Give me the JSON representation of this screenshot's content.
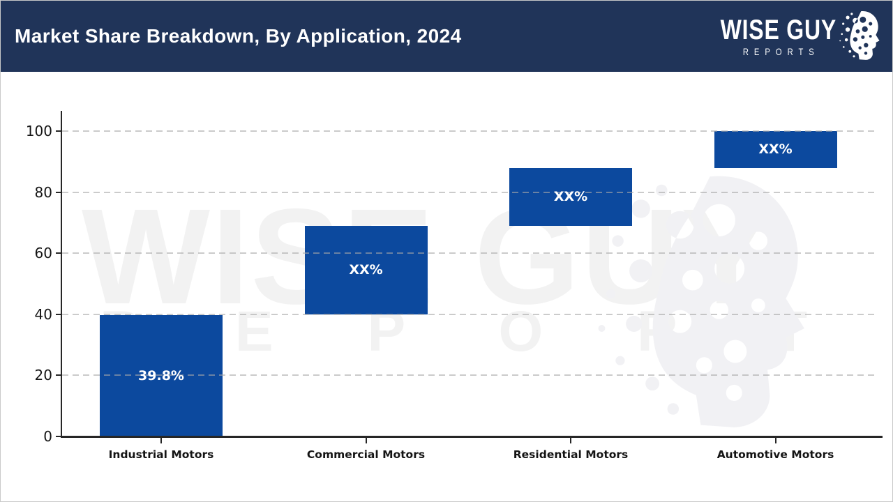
{
  "header": {
    "title": "Market Share Breakdown, By Application, 2024",
    "bg_color": "#203459",
    "logo_line1": "WISE GUY",
    "logo_line2": "REPORTS"
  },
  "watermark": {
    "line1": "WISE GUY",
    "line2": "R E P O R T S"
  },
  "chart_data": {
    "type": "bar",
    "subtype": "waterfall",
    "title": "Market Share Breakdown, By Application, 2024",
    "categories": [
      "Industrial Motors",
      "Commercial Motors",
      "Residential Motors",
      "Automotive Motors"
    ],
    "segments": [
      {
        "category": "Industrial Motors",
        "start": 0,
        "end": 39.8,
        "label": "39.8%"
      },
      {
        "category": "Commercial Motors",
        "start": 40,
        "end": 69,
        "label": "XX%"
      },
      {
        "category": "Residential Motors",
        "start": 69,
        "end": 88,
        "label": "XX%"
      },
      {
        "category": "Automotive Motors",
        "start": 88,
        "end": 100,
        "label": "XX%"
      }
    ],
    "ylim": [
      0,
      100
    ],
    "yticks": [
      0,
      20,
      40,
      60,
      80,
      100
    ],
    "xlabel": "",
    "ylabel": "",
    "grid": "horizontal-dashed",
    "legend": "none",
    "bar_color": "#0c499e",
    "bar_label_color": "#ffffff",
    "axis_color": "#262626",
    "tick_label_color": "#141414"
  }
}
